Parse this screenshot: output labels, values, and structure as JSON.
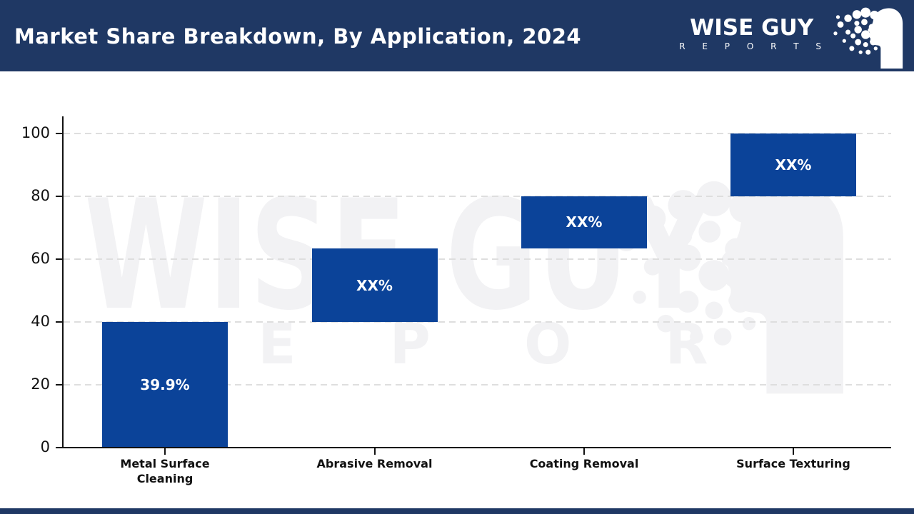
{
  "header": {
    "title": "Market Share Breakdown, By Application, 2024",
    "logo": {
      "line1": "WISE GUY",
      "line2": "R E P O R T S",
      "head_icon": "dotted-head-profile"
    }
  },
  "watermark": {
    "line1": "WISE GUY",
    "line2": "R E P O R T S",
    "head_icon": "dotted-head-profile"
  },
  "colors": {
    "header_bg": "#1f3864",
    "bar": "#0b4399",
    "bar_label": "#ffffff",
    "grid": "#dedede",
    "axis": "#111111",
    "watermark": "#f2f2f4",
    "title_text": "#ffffff"
  },
  "chart_data": {
    "type": "bar",
    "subtype": "waterfall",
    "title": "Market Share Breakdown, By Application, 2024",
    "categories": [
      "Metal Surface Cleaning",
      "Abrasive Removal",
      "Coating Removal",
      "Surface Texturing"
    ],
    "segments": [
      {
        "category": "Metal Surface Cleaning",
        "start": 0,
        "end": 39.9,
        "label": "39.9%"
      },
      {
        "category": "Abrasive Removal",
        "start": 39.9,
        "end": 63.5,
        "label": "XX%"
      },
      {
        "category": "Coating Removal",
        "start": 63.5,
        "end": 80,
        "label": "XX%"
      },
      {
        "category": "Surface Texturing",
        "start": 80,
        "end": 100,
        "label": "XX%"
      }
    ],
    "xlabel": "",
    "ylabel": "",
    "ylim": [
      0,
      100
    ],
    "yticks": [
      0,
      20,
      40,
      60,
      80,
      100
    ],
    "grid": "horizontal-dashed",
    "legend": "none"
  }
}
